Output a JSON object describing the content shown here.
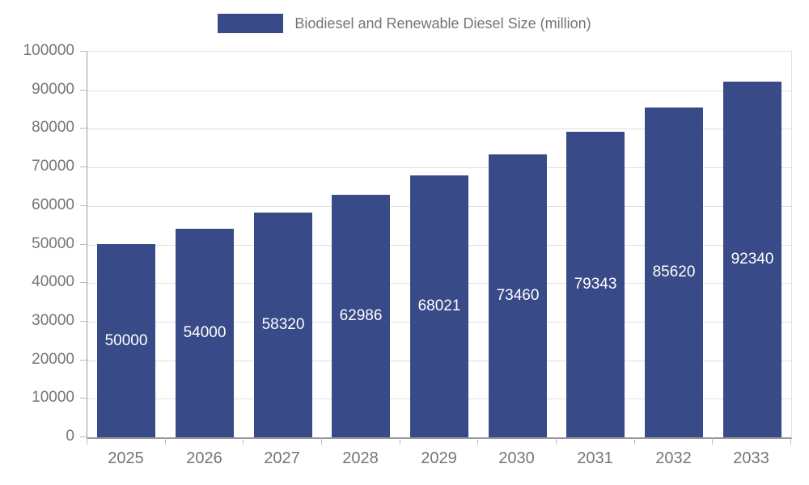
{
  "legend": {
    "label": "Biodiesel and Renewable Diesel Size (million)"
  },
  "chart_data": {
    "type": "bar",
    "title": "",
    "series_name": "Biodiesel and Renewable Diesel Size (million)",
    "categories": [
      "2025",
      "2026",
      "2027",
      "2028",
      "2029",
      "2030",
      "2031",
      "2032",
      "2033"
    ],
    "values": [
      50000,
      54000,
      58320,
      62986,
      68021,
      73460,
      79343,
      85620,
      92340
    ],
    "xlabel": "",
    "ylabel": "",
    "ylim": [
      0,
      100000
    ],
    "ytick_step": 10000,
    "ytick_labels": [
      "0",
      "10000",
      "20000",
      "30000",
      "40000",
      "50000",
      "60000",
      "70000",
      "80000",
      "90000",
      "100000"
    ],
    "grid": true,
    "legend_position": "top-center",
    "bar_labels_inside": true
  },
  "colors": {
    "bar": "#384a87",
    "bar_label": "#ffffff",
    "grid_line": "#e0e0e0",
    "axis_line": "#999999",
    "tick_mark": "#bbbbbb",
    "tick_text": "#757575",
    "legend_text": "#757575",
    "background": "#ffffff"
  }
}
